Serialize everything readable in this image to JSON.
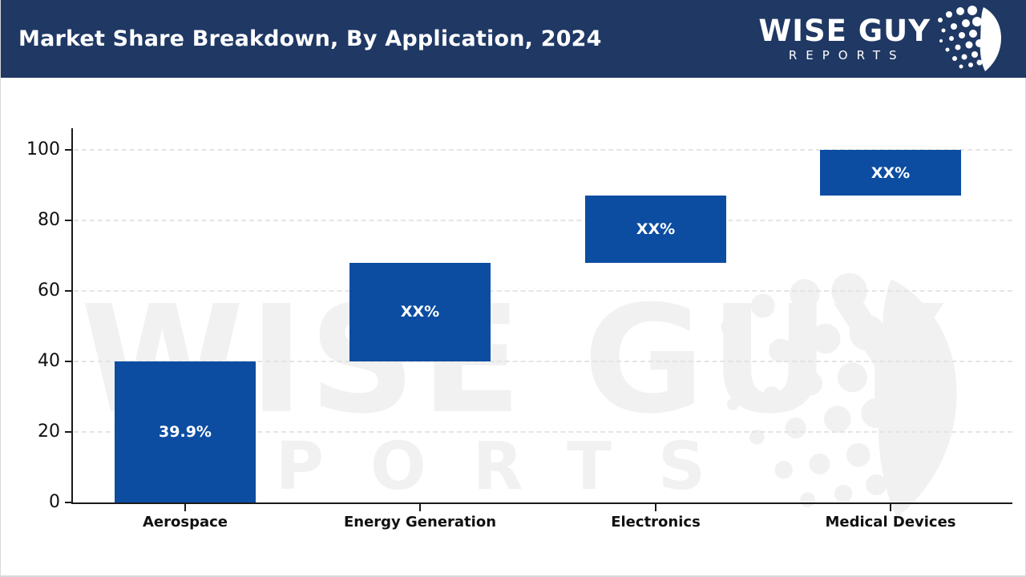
{
  "header": {
    "title": "Market Share Breakdown, By Application, 2024",
    "bg_color": "#1f3864",
    "logo": {
      "line1": "WISE GUY",
      "line2": "REPORTS"
    }
  },
  "watermark": {
    "line1": "WISE GUY",
    "line2": "PORTS"
  },
  "chart_data": {
    "type": "bar",
    "subtype": "waterfall",
    "title": "Market Share Breakdown, By Application, 2024",
    "categories": [
      "Aerospace",
      "Energy Generation",
      "Electronics",
      "Medical Devices"
    ],
    "segments": [
      {
        "category": "Aerospace",
        "start": 0,
        "end": 39.9,
        "value": 39.9,
        "label": "39.9%"
      },
      {
        "category": "Energy Generation",
        "start": 40,
        "end": 68,
        "value": 28,
        "label": "XX%"
      },
      {
        "category": "Electronics",
        "start": 68,
        "end": 87,
        "value": 19,
        "label": "XX%"
      },
      {
        "category": "Medical Devices",
        "start": 87,
        "end": 100,
        "value": 13,
        "label": "XX%"
      }
    ],
    "xlabel": "",
    "ylabel": "",
    "ylim": [
      0,
      106
    ],
    "yticks": [
      0,
      20,
      40,
      60,
      80,
      100
    ],
    "grid": "horizontal dashed, at yticks above 0",
    "legend": "none",
    "bar_color": "#0c4da2",
    "bar_label_color": "#ffffff",
    "axis_color": "#1a1a1a",
    "gridline_color": "#e4e4e4"
  }
}
